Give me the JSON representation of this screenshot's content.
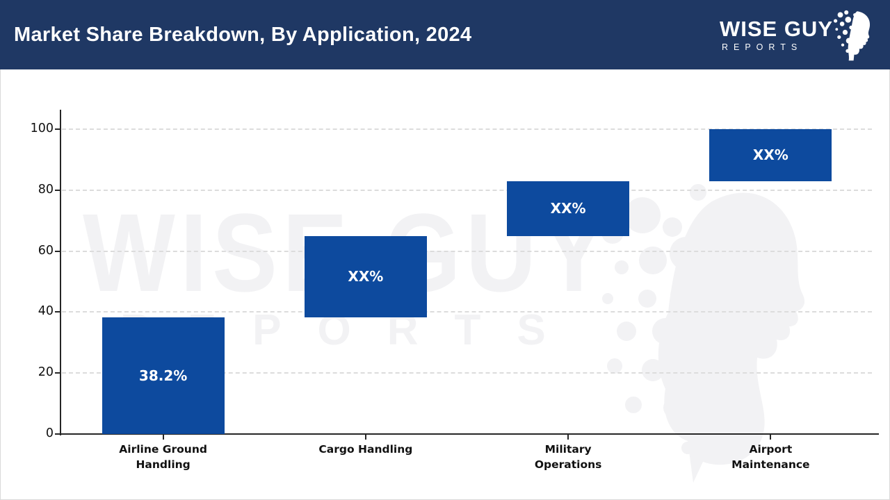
{
  "header": {
    "title": "Market Share Breakdown, By Application, 2024",
    "logo": {
      "line1": "WISE GUY",
      "line2": "REPORTS",
      "icon": "head-profile-dots-icon"
    },
    "bg_color": "#1f3864"
  },
  "watermark": {
    "line1": "WISE GUY",
    "line2": "REPORTS"
  },
  "colors": {
    "header_bg": "#1f3864",
    "bar": "#0d4a9e",
    "grid": "#dcdcdc",
    "axis": "#262626",
    "bar_label": "#ffffff",
    "tick_label": "#111111",
    "watermark": "#f2f2f4"
  },
  "chart_data": {
    "type": "bar",
    "variant": "stacked-waterfall-segments",
    "title": "Market Share Breakdown, By Application, 2024",
    "categories": [
      "Airline Ground Handling",
      "Cargo Handling",
      "Military Operations",
      "Airport Maintenance"
    ],
    "category_lines": [
      [
        "Airline Ground",
        "Handling"
      ],
      [
        "Cargo Handling"
      ],
      [
        "Military",
        "Operations"
      ],
      [
        "Airport",
        "Maintenance"
      ]
    ],
    "segments": [
      {
        "category": "Airline Ground Handling",
        "from": 0,
        "to": 38.2,
        "label": "38.2%"
      },
      {
        "category": "Cargo Handling",
        "from": 38.2,
        "to": 65,
        "label": "XX%"
      },
      {
        "category": "Military Operations",
        "from": 65,
        "to": 83,
        "label": "XX%"
      },
      {
        "category": "Airport Maintenance",
        "from": 83,
        "to": 100,
        "label": "XX%"
      }
    ],
    "ylim": [
      0,
      100
    ],
    "yticks": [
      0,
      20,
      40,
      60,
      80,
      100
    ],
    "xlabel": "",
    "ylabel": "",
    "grid": "horizontal-dashed",
    "legend": "none",
    "bar_color": "#0d4a9e"
  }
}
